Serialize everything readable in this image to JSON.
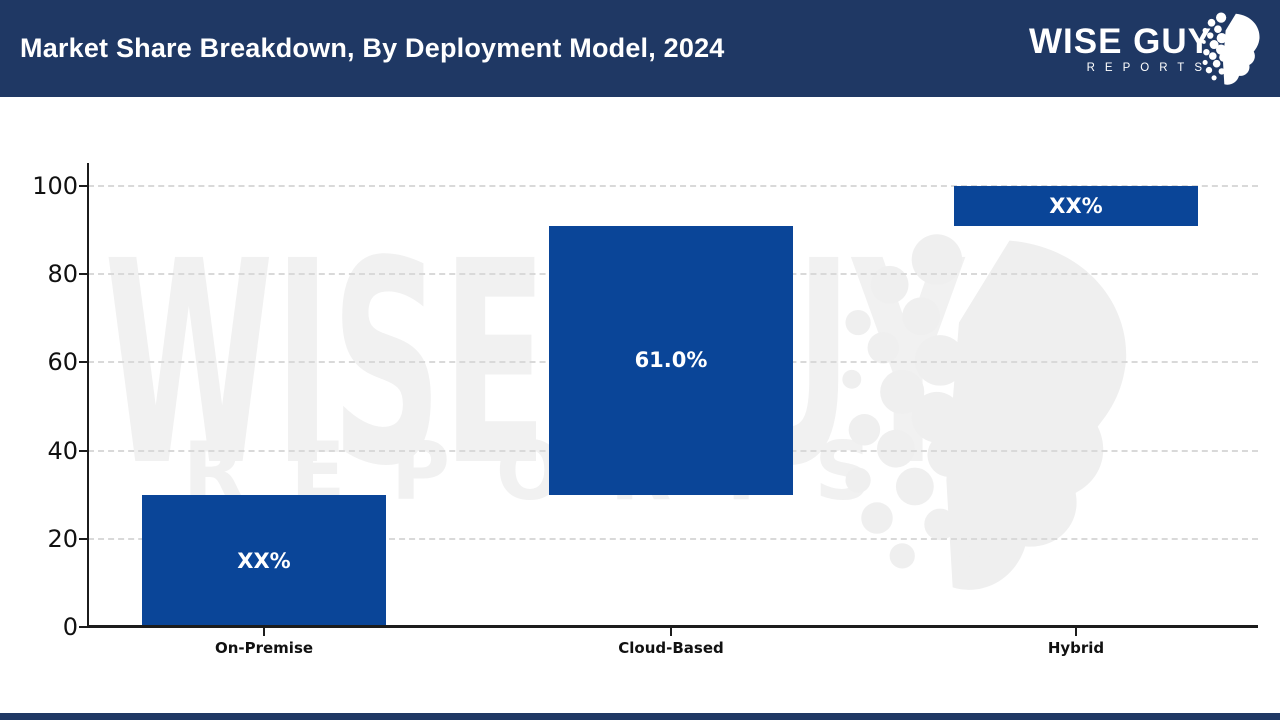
{
  "page": {
    "bg_color": "#ffffff",
    "accent_navy": "#1f3864"
  },
  "header": {
    "title": "Market Share Breakdown, By Deployment Model, 2024",
    "bg_color": "#1f3864",
    "text_color": "#ffffff",
    "brand": {
      "line1": "WISE GUY",
      "line2": "REPORTS",
      "face_icon": "dotted-head-profile-icon"
    }
  },
  "watermark": {
    "line1": "WISE GUY",
    "line2": "REPORTS",
    "color": "#f1f1f1",
    "face_color": "#efefef",
    "face_icon": "dotted-head-profile-watermark"
  },
  "chart_data": {
    "type": "bar",
    "subtype": "floating-waterfall",
    "title": "Market Share Breakdown, By Deployment Model, 2024",
    "categories": [
      "On-Premise",
      "Cloud-Based",
      "Hybrid"
    ],
    "segments": [
      {
        "category": "On-Premise",
        "from": 0,
        "to": 30,
        "label": "XX%"
      },
      {
        "category": "Cloud-Based",
        "from": 30,
        "to": 91,
        "label": "61.0%"
      },
      {
        "category": "Hybrid",
        "from": 91,
        "to": 100,
        "label": "XX%"
      }
    ],
    "values": [
      30,
      61,
      9
    ],
    "bar_labels": [
      "XX%",
      "61.0%",
      "XX%"
    ],
    "xlabel": "",
    "ylabel": "",
    "ylim": [
      0,
      100
    ],
    "yticks": [
      0,
      20,
      40,
      60,
      80,
      100
    ],
    "grid": "horizontal-dashed",
    "legend": "none",
    "bar_color": "#0a4598",
    "grid_color": "#d9d9d9",
    "axis_color": "#1c1c1c",
    "bar_label_color": "#ffffff"
  },
  "footer": {
    "bg_color": "#1f3864"
  }
}
